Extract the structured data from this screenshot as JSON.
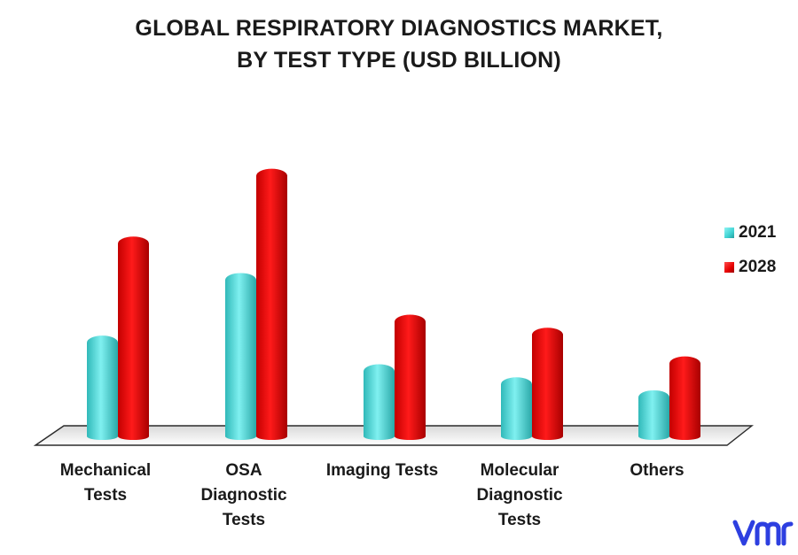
{
  "chart_data": {
    "type": "bar",
    "title": "GLOBAL  RESPIRATORY DIAGNOSTICS MARKET,\nBY TEST TYPE (USD BILLION)",
    "categories": [
      "Mechanical\nTests",
      "OSA\nDiagnostic\nTests",
      "Imaging Tests",
      "Molecular\nDiagnostic\nTests",
      "Others"
    ],
    "series": [
      {
        "name": "2021",
        "color": "#3fd2d2",
        "values": [
          3.8,
          6.2,
          2.7,
          2.2,
          1.7
        ]
      },
      {
        "name": "2028",
        "color": "#e60000",
        "values": [
          7.6,
          10.2,
          4.6,
          4.1,
          3.0
        ]
      }
    ],
    "ylim": [
      0,
      10.8
    ],
    "grid": false,
    "legend": "right",
    "xlabel": "",
    "ylabel": ""
  },
  "logo": {
    "icon": "vmr-logo-icon",
    "color": "#2d3fe0"
  }
}
